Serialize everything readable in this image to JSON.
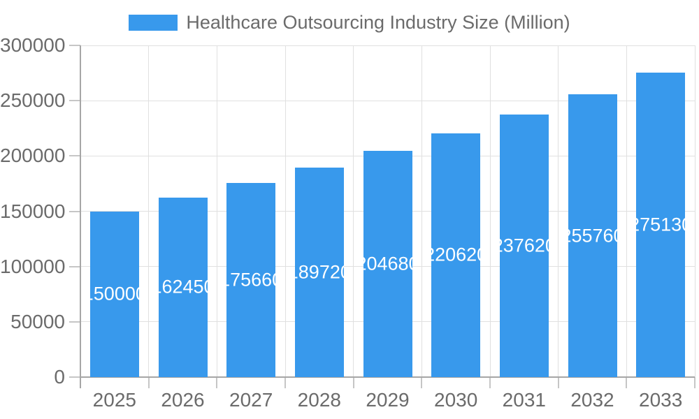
{
  "chart_data": {
    "type": "bar",
    "title": "Healthcare Outsourcing Industry Size (Million)",
    "categories": [
      "2025",
      "2026",
      "2027",
      "2028",
      "2029",
      "2030",
      "2031",
      "2032",
      "2033"
    ],
    "values": [
      150000,
      162450,
      175660,
      189720,
      204680,
      220620,
      237620,
      255760,
      275130
    ],
    "series": [
      {
        "name": "Healthcare Outsourcing Industry Size (Million)",
        "values": [
          150000,
          162450,
          175660,
          189720,
          204680,
          220620,
          237620,
          255760,
          275130
        ]
      }
    ],
    "bar_value_labels": [
      "150000",
      "162450",
      "175660",
      "189720",
      "204680",
      "220620",
      "237620",
      "255760",
      "275130"
    ],
    "xlabel": "",
    "ylabel": "",
    "ylim": [
      0,
      300000
    ],
    "yticks": [
      0,
      50000,
      100000,
      150000,
      200000,
      250000,
      300000
    ],
    "ytick_labels": [
      "0",
      "50000",
      "100000",
      "150000",
      "200000",
      "250000",
      "300000"
    ],
    "grid": true,
    "legend_position": "top"
  },
  "style": {
    "bar_color": "#3899EC",
    "bar_label_color": "#FFFFFF",
    "grid_color": "#E0E0E0",
    "tick_color": "#C6C6C6",
    "axis_color": "#A6A6A6",
    "text_color": "#6B6B6B",
    "background_color": "#FFFFFF"
  }
}
